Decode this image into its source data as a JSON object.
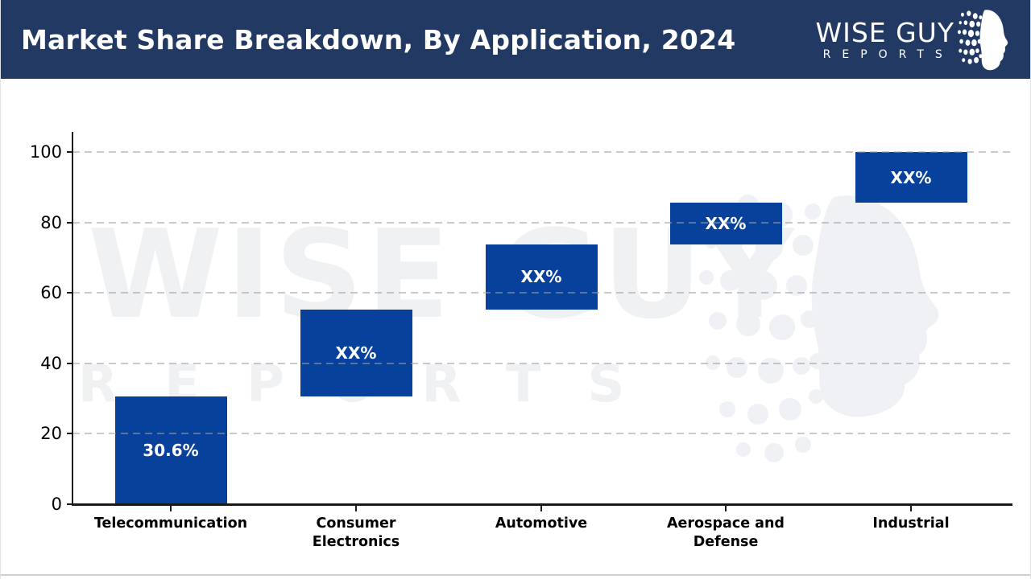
{
  "header": {
    "title": "Market Share Breakdown, By Application, 2024",
    "logo": {
      "wordmark": "WISE GUY",
      "subtext": "REPORTS"
    }
  },
  "watermark": {
    "wordmark": "WISE GUY",
    "subtext": "REPORTS"
  },
  "chart_data": {
    "type": "bar",
    "subtype": "waterfall",
    "title": "Market Share Breakdown, By Application, 2024",
    "categories": [
      "Telecommunication",
      "Consumer Electronics",
      "Automotive",
      "Aerospace and Defense",
      "Industrial"
    ],
    "category_lines": [
      [
        "Telecommunication"
      ],
      [
        "Consumer",
        "Electronics"
      ],
      [
        "Automotive"
      ],
      [
        "Aerospace and",
        "Defense"
      ],
      [
        "Industrial"
      ]
    ],
    "segments": [
      {
        "category": "Telecommunication",
        "start": 0,
        "end": 30.6,
        "label": "30.6%"
      },
      {
        "category": "Consumer Electronics",
        "start": 30.6,
        "end": 55.3,
        "label": "XX%"
      },
      {
        "category": "Automotive",
        "start": 55.3,
        "end": 73.7,
        "label": "XX%"
      },
      {
        "category": "Aerospace and Defense",
        "start": 73.7,
        "end": 85.6,
        "label": "XX%"
      },
      {
        "category": "Industrial",
        "start": 85.6,
        "end": 100,
        "label": "XX%"
      }
    ],
    "ylim": [
      0,
      100
    ],
    "yticks": [
      0,
      20,
      40,
      60,
      80,
      100
    ],
    "xlabel": "",
    "ylabel": "",
    "grid": {
      "axis": "y",
      "style": "dashed",
      "color": "#d6d6d6",
      "drawn_over_bars": true
    },
    "legend": "none",
    "bar_color": "#08419c",
    "bar_label_color": "#ffffff"
  },
  "colors": {
    "header_bg": "#223a63",
    "chart_bg": "#ffffff",
    "axis": "#1a1a1a",
    "tick_label": "#000000",
    "watermark": "#f0f1f3"
  }
}
